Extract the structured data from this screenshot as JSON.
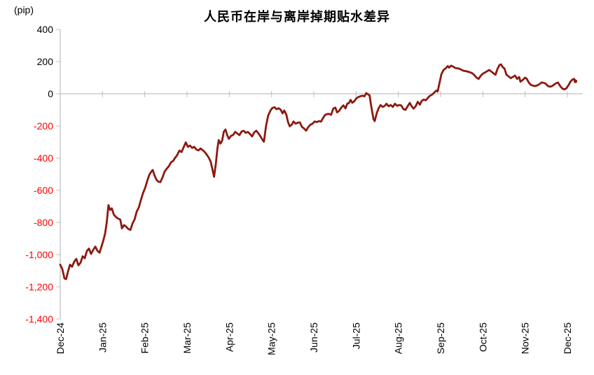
{
  "page": {
    "background": "#FFFFFF"
  },
  "header": {
    "title": "人民币在岸与离岸掉期贴水差异",
    "unit_label": "(pip)"
  },
  "chart_data": {
    "type": "line",
    "title": "人民币在岸与离岸掉期贴水差异",
    "ylabel": "(pip)",
    "xlabel": "",
    "ylim": [
      -1400,
      400
    ],
    "y_tick_interval": 200,
    "y_ticks": [
      400,
      200,
      0,
      -200,
      -400,
      -600,
      -800,
      -1000,
      -1200,
      -1400
    ],
    "y_tick_labels": [
      "400",
      "200",
      "0",
      "-200",
      "-400",
      "-600",
      "-800",
      "-1,000",
      "-1,200",
      "-1,400"
    ],
    "x_categories": [
      "Dec-24",
      "Jan-25",
      "Feb-25",
      "Mar-25",
      "Apr-25",
      "May-25",
      "Jun-25",
      "Jul-25",
      "Aug-25",
      "Sep-25",
      "Oct-25",
      "Nov-25",
      "Dec-25"
    ],
    "grid": "zero-line-only",
    "legend": "none",
    "colors": {
      "line": "#8C1A0F",
      "axis": "#C0C0C0",
      "tick_label_positive": "#000000",
      "tick_label_negative": "#FF0000"
    },
    "series": [
      {
        "name": "掉期贴水差异",
        "color": "#8C1A0F",
        "points": [
          [
            0,
            -1062
          ],
          [
            0.05,
            -1090
          ],
          [
            0.1,
            -1148
          ],
          [
            0.14,
            -1152
          ],
          [
            0.18,
            -1108
          ],
          [
            0.23,
            -1062
          ],
          [
            0.28,
            -1075
          ],
          [
            0.33,
            -1044
          ],
          [
            0.38,
            -1026
          ],
          [
            0.43,
            -1066
          ],
          [
            0.48,
            -1050
          ],
          [
            0.53,
            -1010
          ],
          [
            0.58,
            -1022
          ],
          [
            0.63,
            -978
          ],
          [
            0.68,
            -962
          ],
          [
            0.73,
            -995
          ],
          [
            0.78,
            -970
          ],
          [
            0.83,
            -950
          ],
          [
            0.88,
            -976
          ],
          [
            0.93,
            -988
          ],
          [
            0.97,
            -955
          ],
          [
            1.02,
            -912
          ],
          [
            1.06,
            -870
          ],
          [
            1.1,
            -800
          ],
          [
            1.14,
            -692
          ],
          [
            1.18,
            -722
          ],
          [
            1.22,
            -712
          ],
          [
            1.27,
            -752
          ],
          [
            1.32,
            -766
          ],
          [
            1.37,
            -776
          ],
          [
            1.42,
            -782
          ],
          [
            1.46,
            -836
          ],
          [
            1.51,
            -816
          ],
          [
            1.56,
            -826
          ],
          [
            1.61,
            -840
          ],
          [
            1.66,
            -846
          ],
          [
            1.71,
            -806
          ],
          [
            1.76,
            -780
          ],
          [
            1.81,
            -732
          ],
          [
            1.86,
            -706
          ],
          [
            1.91,
            -660
          ],
          [
            1.96,
            -616
          ],
          [
            2.01,
            -584
          ],
          [
            2.06,
            -540
          ],
          [
            2.11,
            -502
          ],
          [
            2.16,
            -482
          ],
          [
            2.19,
            -474
          ],
          [
            2.23,
            -506
          ],
          [
            2.28,
            -536
          ],
          [
            2.32,
            -546
          ],
          [
            2.37,
            -549
          ],
          [
            2.42,
            -520
          ],
          [
            2.47,
            -484
          ],
          [
            2.52,
            -466
          ],
          [
            2.57,
            -450
          ],
          [
            2.62,
            -426
          ],
          [
            2.67,
            -418
          ],
          [
            2.72,
            -398
          ],
          [
            2.77,
            -380
          ],
          [
            2.82,
            -353
          ],
          [
            2.87,
            -362
          ],
          [
            2.92,
            -332
          ],
          [
            2.97,
            -302
          ],
          [
            3.02,
            -330
          ],
          [
            3.07,
            -322
          ],
          [
            3.12,
            -336
          ],
          [
            3.17,
            -330
          ],
          [
            3.22,
            -346
          ],
          [
            3.27,
            -352
          ],
          [
            3.32,
            -340
          ],
          [
            3.37,
            -350
          ],
          [
            3.42,
            -362
          ],
          [
            3.47,
            -380
          ],
          [
            3.52,
            -400
          ],
          [
            3.56,
            -422
          ],
          [
            3.61,
            -480
          ],
          [
            3.64,
            -516
          ],
          [
            3.68,
            -440
          ],
          [
            3.72,
            -340
          ],
          [
            3.75,
            -288
          ],
          [
            3.79,
            -310
          ],
          [
            3.83,
            -292
          ],
          [
            3.87,
            -236
          ],
          [
            3.91,
            -222
          ],
          [
            3.95,
            -256
          ],
          [
            3.99,
            -280
          ],
          [
            4.04,
            -262
          ],
          [
            4.09,
            -256
          ],
          [
            4.14,
            -237
          ],
          [
            4.19,
            -247
          ],
          [
            4.24,
            -257
          ],
          [
            4.29,
            -235
          ],
          [
            4.34,
            -230
          ],
          [
            4.39,
            -243
          ],
          [
            4.44,
            -237
          ],
          [
            4.49,
            -250
          ],
          [
            4.54,
            -265
          ],
          [
            4.59,
            -240
          ],
          [
            4.64,
            -230
          ],
          [
            4.69,
            -246
          ],
          [
            4.74,
            -266
          ],
          [
            4.79,
            -288
          ],
          [
            4.82,
            -298
          ],
          [
            4.87,
            -200
          ],
          [
            4.92,
            -136
          ],
          [
            4.97,
            -106
          ],
          [
            5.02,
            -88
          ],
          [
            5.07,
            -84
          ],
          [
            5.12,
            -96
          ],
          [
            5.17,
            -90
          ],
          [
            5.22,
            -100
          ],
          [
            5.26,
            -122
          ],
          [
            5.3,
            -104
          ],
          [
            5.35,
            -130
          ],
          [
            5.39,
            -176
          ],
          [
            5.43,
            -202
          ],
          [
            5.48,
            -192
          ],
          [
            5.52,
            -172
          ],
          [
            5.57,
            -186
          ],
          [
            5.62,
            -180
          ],
          [
            5.67,
            -178
          ],
          [
            5.72,
            -206
          ],
          [
            5.77,
            -216
          ],
          [
            5.82,
            -229
          ],
          [
            5.87,
            -206
          ],
          [
            5.92,
            -192
          ],
          [
            5.97,
            -186
          ],
          [
            6.02,
            -172
          ],
          [
            6.07,
            -176
          ],
          [
            6.12,
            -170
          ],
          [
            6.17,
            -173
          ],
          [
            6.22,
            -150
          ],
          [
            6.27,
            -131
          ],
          [
            6.31,
            -127
          ],
          [
            6.36,
            -125
          ],
          [
            6.41,
            -131
          ],
          [
            6.46,
            -92
          ],
          [
            6.51,
            -86
          ],
          [
            6.55,
            -116
          ],
          [
            6.6,
            -106
          ],
          [
            6.65,
            -86
          ],
          [
            6.7,
            -72
          ],
          [
            6.75,
            -91
          ],
          [
            6.79,
            -62
          ],
          [
            6.83,
            -58
          ],
          [
            6.87,
            -38
          ],
          [
            6.91,
            -56
          ],
          [
            6.96,
            -46
          ],
          [
            7.01,
            -28
          ],
          [
            7.06,
            -20
          ],
          [
            7.11,
            -15
          ],
          [
            7.16,
            -12
          ],
          [
            7.2,
            -16
          ],
          [
            7.24,
            4
          ],
          [
            7.28,
            -3
          ],
          [
            7.32,
            -10
          ],
          [
            7.36,
            -80
          ],
          [
            7.41,
            -156
          ],
          [
            7.44,
            -170
          ],
          [
            7.49,
            -120
          ],
          [
            7.53,
            -92
          ],
          [
            7.58,
            -70
          ],
          [
            7.63,
            -82
          ],
          [
            7.68,
            -75
          ],
          [
            7.72,
            -62
          ],
          [
            7.77,
            -78
          ],
          [
            7.82,
            -70
          ],
          [
            7.87,
            -82
          ],
          [
            7.92,
            -62
          ],
          [
            7.97,
            -75
          ],
          [
            8.02,
            -70
          ],
          [
            8.07,
            -73
          ],
          [
            8.12,
            -95
          ],
          [
            8.17,
            -100
          ],
          [
            8.22,
            -78
          ],
          [
            8.27,
            -57
          ],
          [
            8.32,
            -80
          ],
          [
            8.36,
            -92
          ],
          [
            8.41,
            -78
          ],
          [
            8.46,
            -50
          ],
          [
            8.51,
            -68
          ],
          [
            8.55,
            -45
          ],
          [
            8.6,
            -36
          ],
          [
            8.65,
            -41
          ],
          [
            8.7,
            -25
          ],
          [
            8.75,
            -12
          ],
          [
            8.8,
            -5
          ],
          [
            8.85,
            8
          ],
          [
            8.9,
            20
          ],
          [
            8.93,
            14
          ],
          [
            8.97,
            62
          ],
          [
            9.02,
            122
          ],
          [
            9.07,
            148
          ],
          [
            9.12,
            158
          ],
          [
            9.17,
            172
          ],
          [
            9.2,
            162
          ],
          [
            9.25,
            175
          ],
          [
            9.3,
            168
          ],
          [
            9.35,
            160
          ],
          [
            9.4,
            158
          ],
          [
            9.45,
            155
          ],
          [
            9.5,
            148
          ],
          [
            9.55,
            142
          ],
          [
            9.6,
            140
          ],
          [
            9.65,
            137
          ],
          [
            9.7,
            133
          ],
          [
            9.75,
            127
          ],
          [
            9.8,
            115
          ],
          [
            9.85,
            100
          ],
          [
            9.9,
            92
          ],
          [
            9.95,
            112
          ],
          [
            10,
            125
          ],
          [
            10.05,
            132
          ],
          [
            10.1,
            140
          ],
          [
            10.15,
            148
          ],
          [
            10.2,
            138
          ],
          [
            10.25,
            128
          ],
          [
            10.3,
            118
          ],
          [
            10.34,
            150
          ],
          [
            10.39,
            178
          ],
          [
            10.43,
            182
          ],
          [
            10.48,
            162
          ],
          [
            10.51,
            158
          ],
          [
            10.56,
            118
          ],
          [
            10.61,
            108
          ],
          [
            10.66,
            97
          ],
          [
            10.71,
            105
          ],
          [
            10.76,
            113
          ],
          [
            10.81,
            92
          ],
          [
            10.86,
            104
          ],
          [
            10.89,
            75
          ],
          [
            10.94,
            85
          ],
          [
            11,
            100
          ],
          [
            11.04,
            92
          ],
          [
            11.09,
            68
          ],
          [
            11.14,
            55
          ],
          [
            11.19,
            50
          ],
          [
            11.24,
            48
          ],
          [
            11.29,
            52
          ],
          [
            11.34,
            60
          ],
          [
            11.39,
            70
          ],
          [
            11.44,
            68
          ],
          [
            11.49,
            62
          ],
          [
            11.54,
            48
          ],
          [
            11.59,
            44
          ],
          [
            11.64,
            48
          ],
          [
            11.69,
            58
          ],
          [
            11.74,
            66
          ],
          [
            11.78,
            70
          ],
          [
            11.83,
            48
          ],
          [
            11.88,
            32
          ],
          [
            11.93,
            27
          ],
          [
            11.98,
            35
          ],
          [
            12.03,
            55
          ],
          [
            12.08,
            78
          ],
          [
            12.13,
            90
          ],
          [
            12.16,
            92
          ],
          [
            12.19,
            78
          ]
        ]
      }
    ]
  }
}
